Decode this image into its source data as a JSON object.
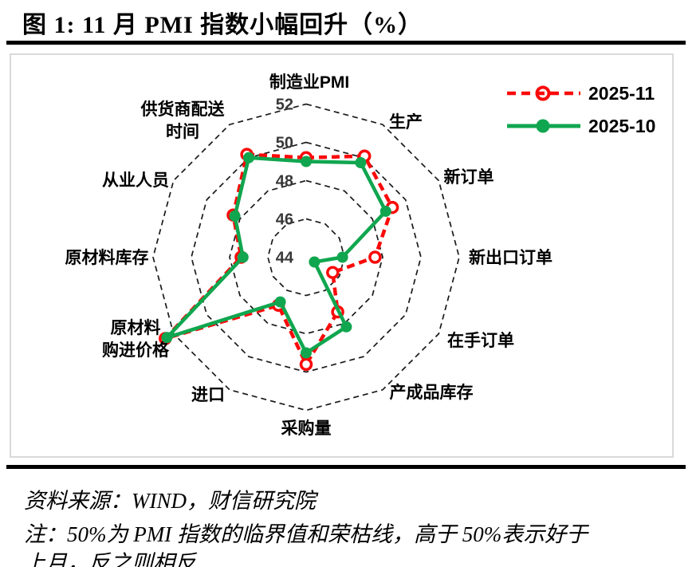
{
  "header": {
    "title": "图 1:  11 月 PMI 指数小幅回升（%）"
  },
  "footer": {
    "source_line": "资料来源：WIND，财信研究院",
    "note_line1": "注：50%为 PMI 指数的临界值和荣枯线，高于 50%表示好于",
    "note_line2": "上月，反之则相反"
  },
  "chart_data": {
    "type": "radar",
    "categories": [
      "制造业PMI",
      "生产",
      "新订单",
      "新出口订单",
      "在手订单",
      "产成品库存",
      "采购量",
      "进口",
      "原材料购进价格",
      "原材料库存",
      "从业人员",
      "供货商配送时间"
    ],
    "series": [
      {
        "name": "2025-11",
        "color": "#FB0909",
        "line_style": "dashed",
        "marker": "open-circle",
        "values": [
          49.2,
          50.1,
          49.2,
          47.6,
          45.6,
          47.3,
          49.6,
          46.9,
          52.5,
          47.4,
          48.4,
          50.2
        ]
      },
      {
        "name": "2025-10",
        "color": "#10A64F",
        "line_style": "solid",
        "marker": "filled-circle",
        "values": [
          49.0,
          49.7,
          48.8,
          45.9,
          44.5,
          48.2,
          49.0,
          46.7,
          52.4,
          47.3,
          48.3,
          50.0
        ]
      }
    ],
    "radial_axis": {
      "min": 44,
      "max": 52,
      "step": 2,
      "ticks": [
        44,
        46,
        48,
        50,
        52
      ]
    },
    "grid": "dashed-rings",
    "grid_color": "#1A1A1A",
    "legend_position": "top-right"
  }
}
